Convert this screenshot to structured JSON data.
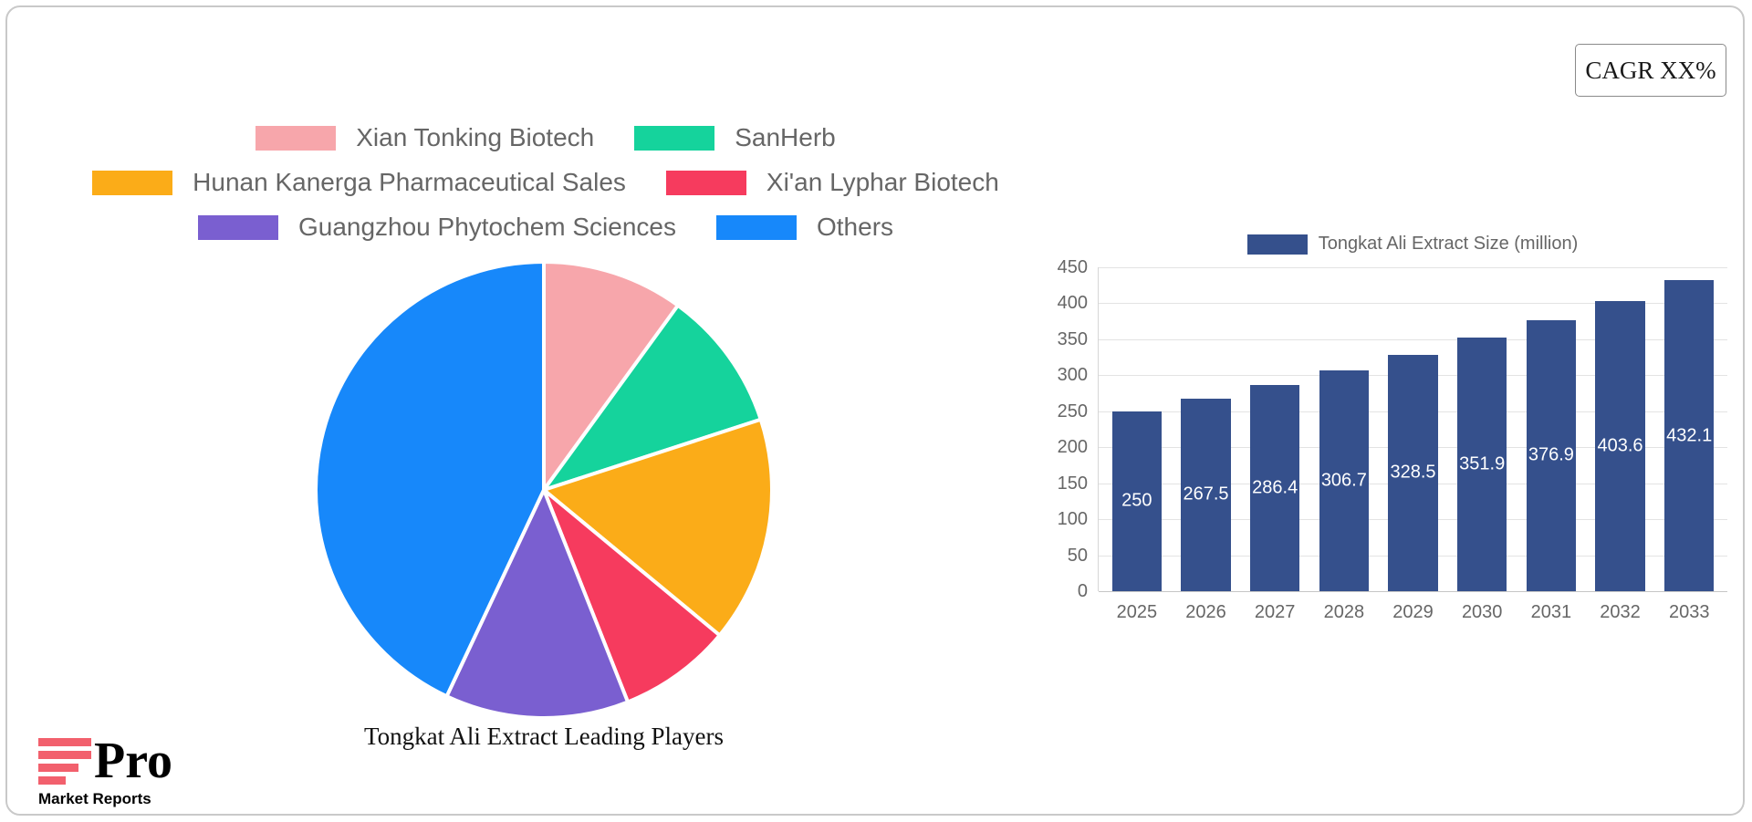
{
  "header": {
    "cagr_label": "CAGR XX%"
  },
  "logo": {
    "title": "Pro",
    "subtitle": "Market Reports",
    "accent_color": "#f2606d"
  },
  "chart_data": [
    {
      "type": "pie",
      "title": "Tongkat Ali Extract Leading Players",
      "labels": [
        "Xian Tonking Biotech",
        "SanHerb",
        "Hunan Kanerga Pharmaceutical Sales",
        "Xi'an Lyphar Biotech",
        "Guangzhou Phytochem Sciences",
        "Others"
      ],
      "values": [
        10,
        10,
        16,
        8,
        13,
        43
      ],
      "colors": [
        "#f7a6ab",
        "#15d39c",
        "#fbac18",
        "#f63b5e",
        "#7a5fd0",
        "#1788fa"
      ],
      "legend_position": "top",
      "legend_rows": [
        [
          0,
          1
        ],
        [
          2,
          3
        ],
        [
          4,
          5
        ]
      ],
      "start_angle_deg": -90,
      "direction": "clockwise"
    },
    {
      "type": "bar",
      "legend": "Tongkat Ali Extract Size (million)",
      "categories": [
        "2025",
        "2026",
        "2027",
        "2028",
        "2029",
        "2030",
        "2031",
        "2032",
        "2033"
      ],
      "values": [
        250,
        267.5,
        286.4,
        306.7,
        328.5,
        351.9,
        376.9,
        403.6,
        432.1
      ],
      "ylim": [
        0,
        450
      ],
      "ytick_step": 50,
      "bar_color": "#35508c",
      "grid": true,
      "value_labels": "inside-white",
      "legend_position": "top"
    }
  ]
}
